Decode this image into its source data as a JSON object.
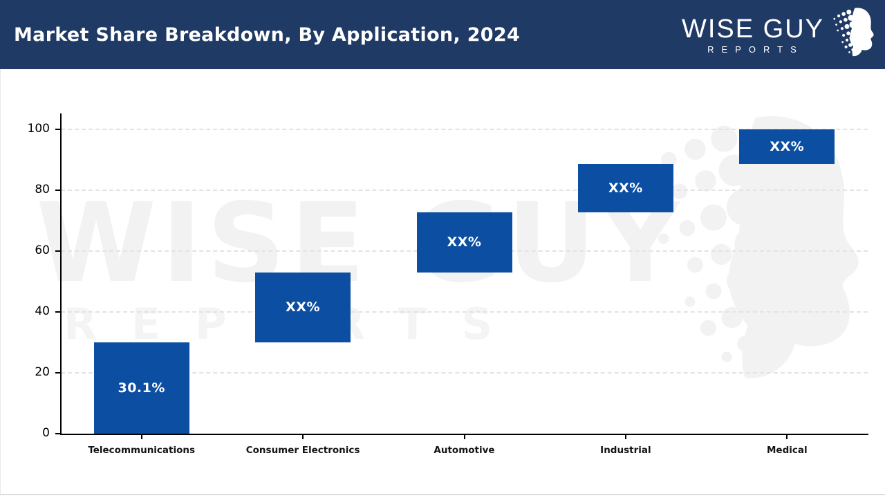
{
  "header": {
    "title": "Market Share Breakdown, By Application, 2024",
    "bg_color": "#203A66",
    "logo": {
      "line1": "WISE GUY",
      "line2": "REPORTS"
    }
  },
  "watermark": {
    "line1": "WISE GUY",
    "line2": "REPORTS"
  },
  "chart_data": {
    "type": "bar",
    "subtype": "waterfall-floating-bars",
    "title": "Market Share Breakdown, By Application, 2024",
    "categories": [
      "Telecommunications",
      "Consumer Electronics",
      "Automotive",
      "Industrial",
      "Medical"
    ],
    "segments": [
      {
        "category": "Telecommunications",
        "start": 0,
        "end": 30.1,
        "label": "30.1%"
      },
      {
        "category": "Consumer Electronics",
        "start": 30.1,
        "end": 53.0,
        "label": "XX%"
      },
      {
        "category": "Automotive",
        "start": 53.0,
        "end": 72.8,
        "label": "XX%"
      },
      {
        "category": "Industrial",
        "start": 72.8,
        "end": 88.6,
        "label": "XX%"
      },
      {
        "category": "Medical",
        "start": 88.6,
        "end": 100,
        "label": "XX%"
      }
    ],
    "y_ticks": [
      0,
      20,
      40,
      60,
      80,
      100
    ],
    "ylim": [
      0,
      105
    ],
    "xlabel": "",
    "ylabel": "",
    "bar_color": "#0B4EA2",
    "label_color": "#ffffff",
    "grid": "horizontal-dashed",
    "legend": "none"
  }
}
